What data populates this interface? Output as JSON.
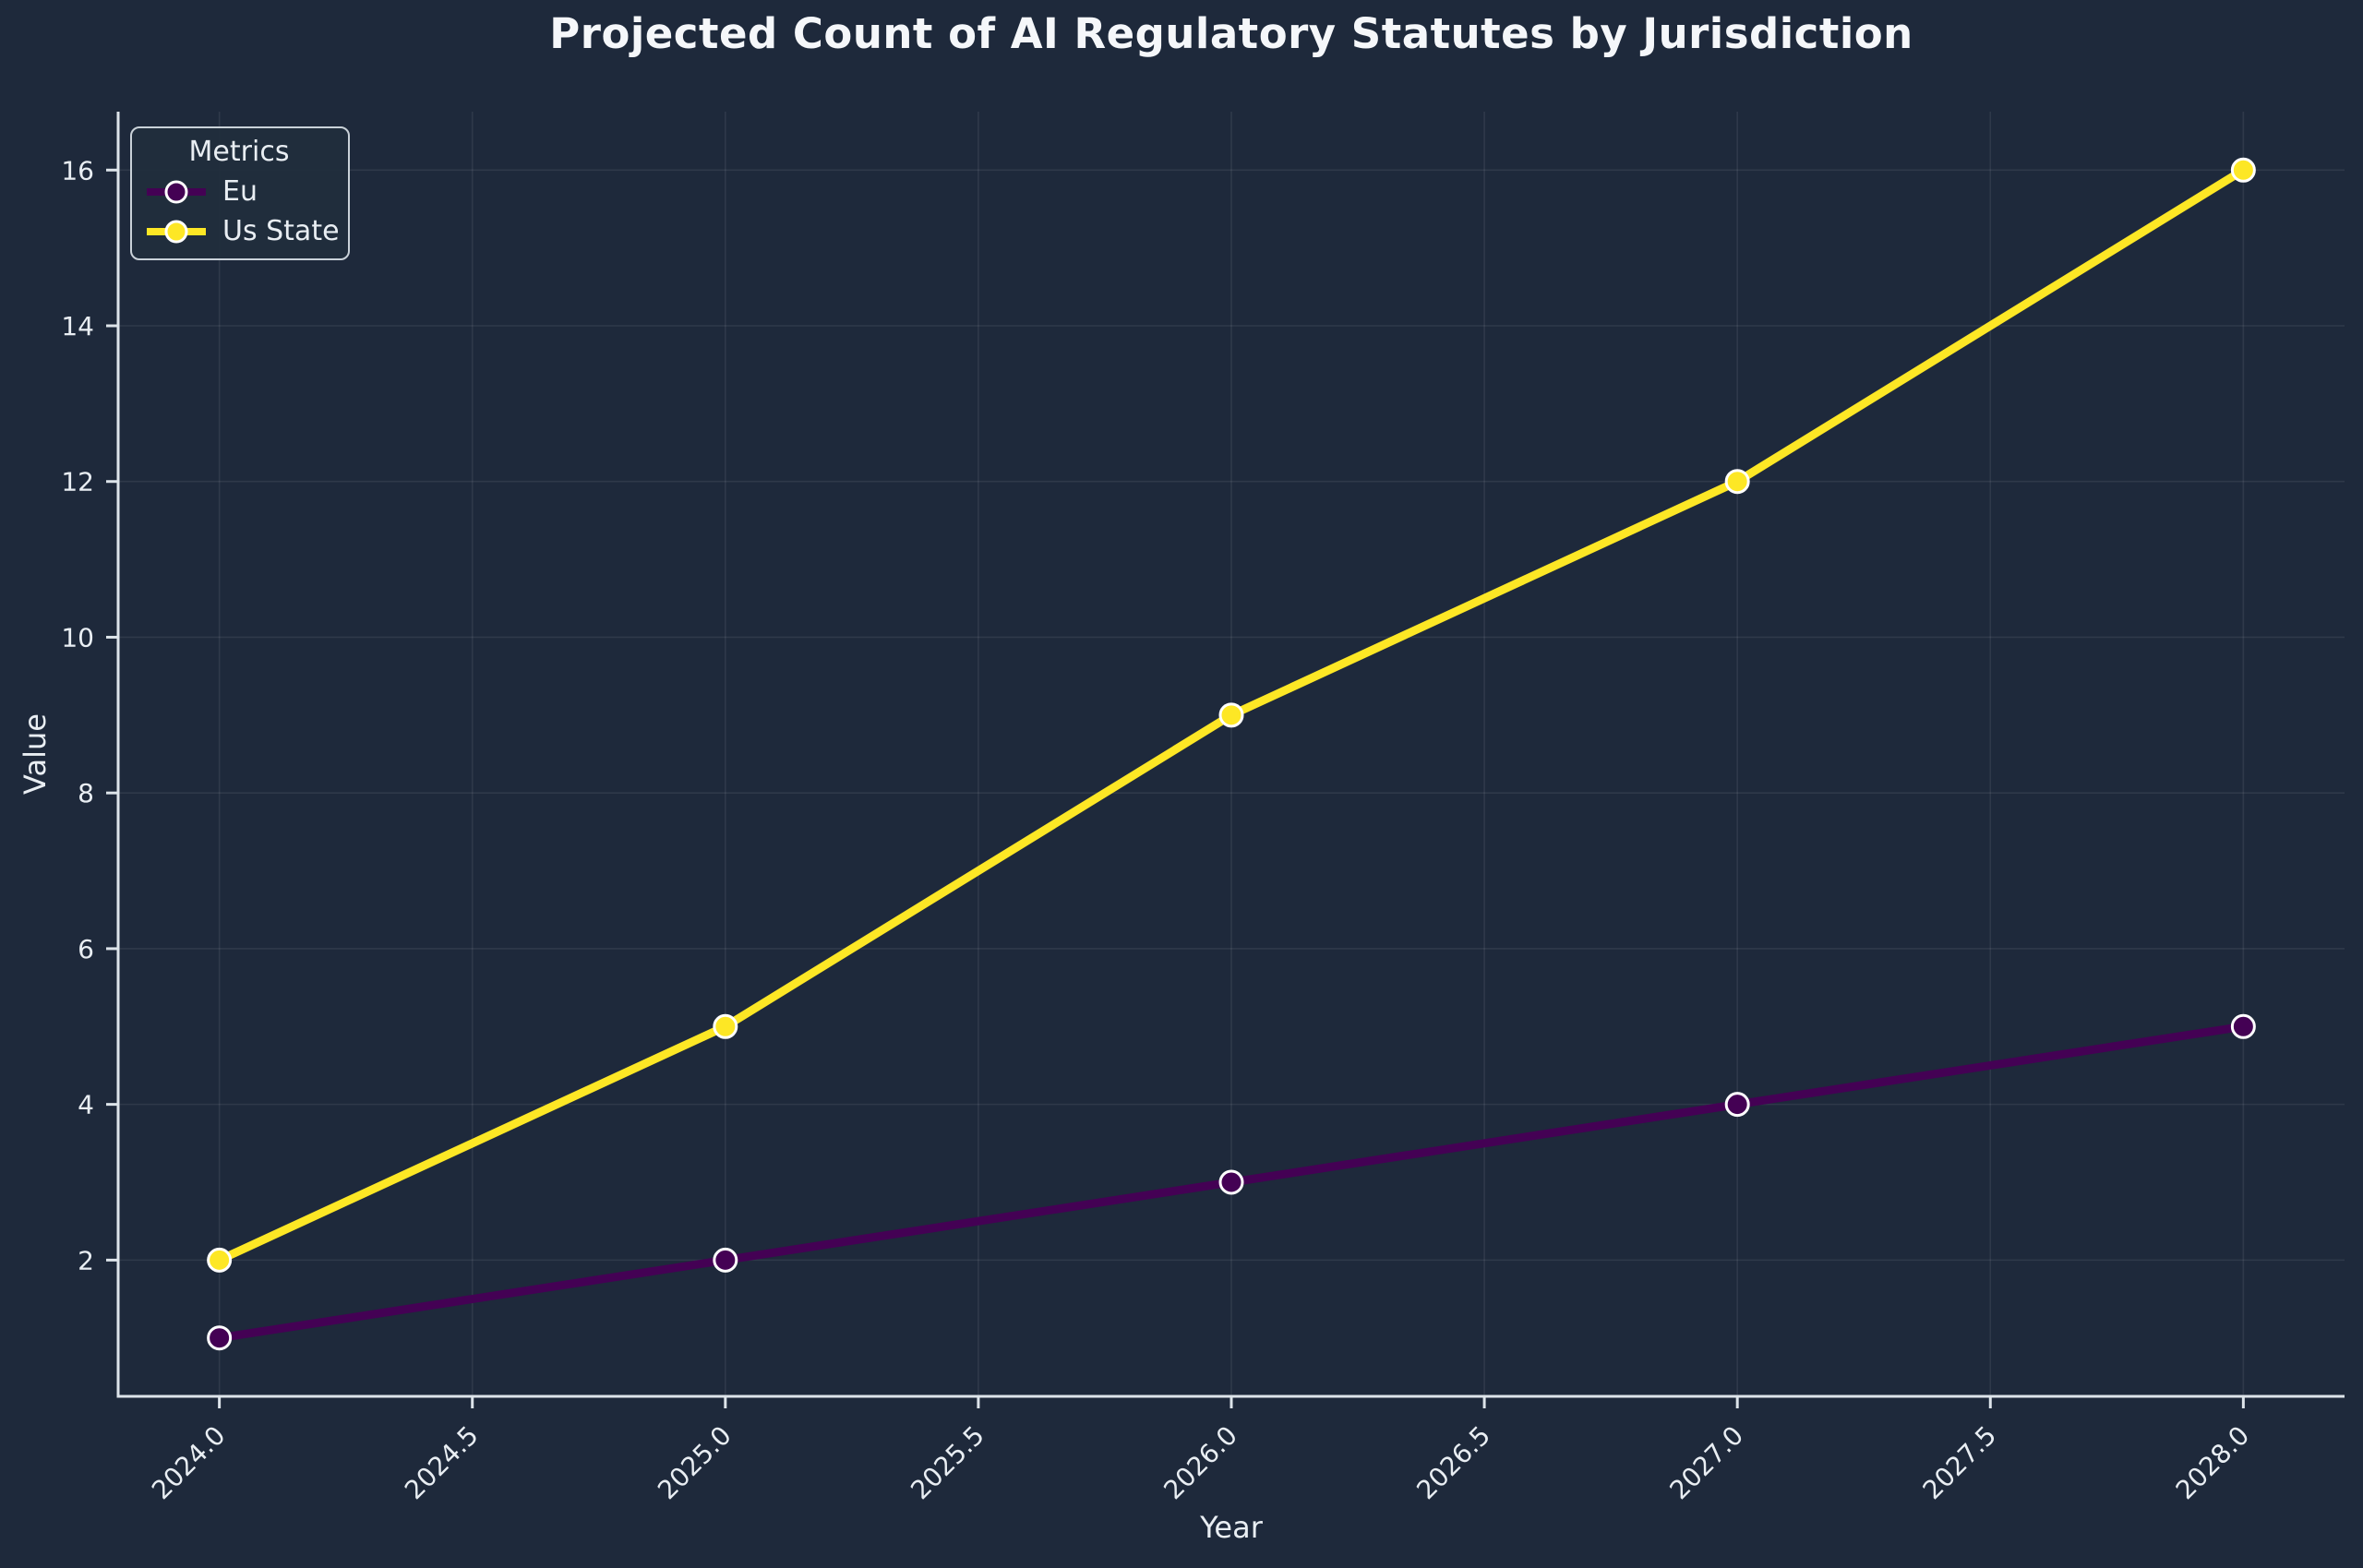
{
  "figure": {
    "background_color": "#1e293b",
    "text_color": "#e9eef3",
    "spine_color": "#dde4ea",
    "grid_color": "rgba(255,255,255,0.08)"
  },
  "chart_data": {
    "type": "line",
    "title": "Projected Count of AI Regulatory Statutes by Jurisdiction",
    "xlabel": "Year",
    "ylabel": "Value",
    "x": [
      2024,
      2025,
      2026,
      2027,
      2028
    ],
    "series": [
      {
        "name": "Eu",
        "values": [
          1,
          2,
          3,
          4,
          5
        ],
        "color": "#440154",
        "marker": "circle"
      },
      {
        "name": "Us State",
        "values": [
          2,
          5,
          9,
          12,
          16
        ],
        "color": "#fde725",
        "marker": "circle"
      }
    ],
    "marker_edge_color": "#ffffff",
    "xticks": [
      2024.0,
      2024.5,
      2025.0,
      2025.5,
      2026.0,
      2026.5,
      2027.0,
      2027.5,
      2028.0
    ],
    "xtick_labels": [
      "2024.0",
      "2024.5",
      "2025.0",
      "2025.5",
      "2026.0",
      "2026.5",
      "2027.0",
      "2027.5",
      "2028.0"
    ],
    "xtick_rotation": 45,
    "yticks": [
      2,
      4,
      6,
      8,
      10,
      12,
      14,
      16
    ],
    "xlim": [
      2023.8,
      2028.2
    ],
    "ylim": [
      0.25,
      16.75
    ],
    "grid": true,
    "legend": {
      "title": "Metrics",
      "position": "upper-left"
    }
  }
}
